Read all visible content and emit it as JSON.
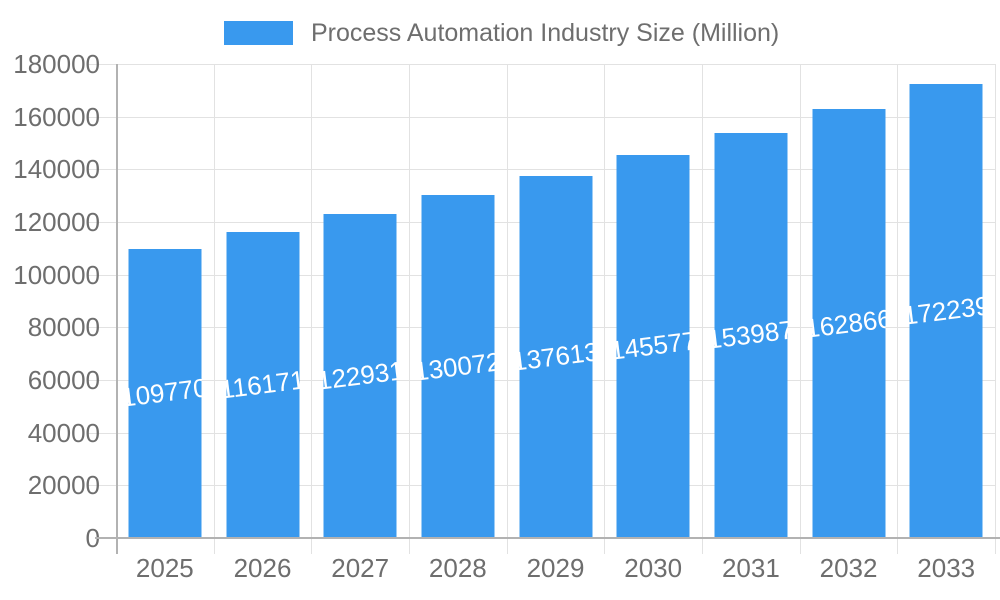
{
  "chart_data": {
    "type": "bar",
    "title": "",
    "categories": [
      "2025",
      "2026",
      "2027",
      "2028",
      "2029",
      "2030",
      "2031",
      "2032",
      "2033"
    ],
    "series": [
      {
        "name": "Process Automation Industry Size (Million)",
        "values": [
          109770,
          116171,
          122931,
          130072,
          137613,
          145577,
          153987,
          162866,
          172239
        ]
      }
    ],
    "xlabel": "",
    "ylabel": "",
    "ylim": [
      0,
      180000
    ],
    "y_ticks": [
      0,
      20000,
      40000,
      60000,
      80000,
      100000,
      120000,
      140000,
      160000,
      180000
    ],
    "grid": true,
    "legend_position": "top",
    "annotations": {
      "style": "value-inside-bar",
      "color": "#ffffff",
      "rotation_deg": -7
    }
  },
  "legend": {
    "label": "Process Automation Industry Size (Million)"
  },
  "colors": {
    "accent": "#3999ee",
    "text": "#6e6e6e",
    "gridline": "#e2e2e2",
    "axis_line": "#b2b2b2",
    "background": "#ffffff",
    "annotation_text": "#ffffff"
  }
}
